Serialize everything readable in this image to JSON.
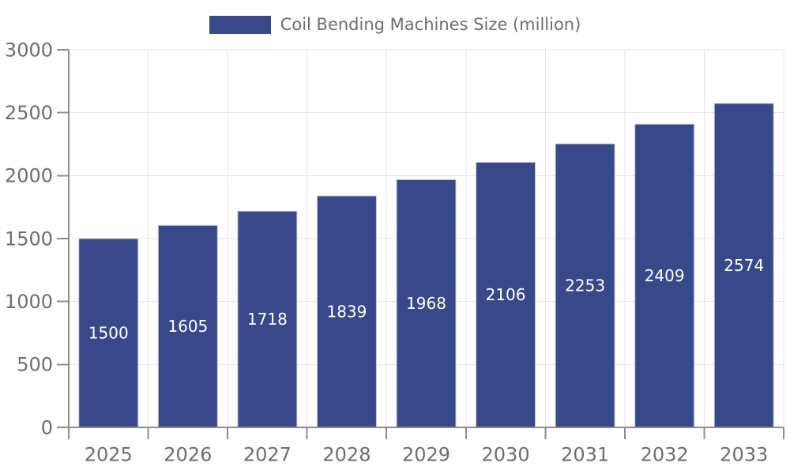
{
  "legend": {
    "label": "Coil Bending Machines Size (million)"
  },
  "chart_data": {
    "type": "bar",
    "title": "Coil Bending Machines Size (million)",
    "series_name": "Coil Bending Machines Size (million)",
    "categories": [
      "2025",
      "2026",
      "2027",
      "2028",
      "2029",
      "2030",
      "2031",
      "2032",
      "2033"
    ],
    "values": [
      1500,
      1605,
      1718,
      1839,
      1968,
      2106,
      2253,
      2409,
      2574
    ],
    "value_labels": [
      "1500",
      "1605",
      "1718",
      "1839",
      "1968",
      "2106",
      "2253",
      "2409",
      "2574"
    ],
    "xlabel": "",
    "ylabel": "",
    "ylim": [
      0,
      3000
    ],
    "ytick_step": 500,
    "yticks": [
      0,
      500,
      1000,
      1500,
      2000,
      2500,
      3000
    ],
    "grid": true,
    "legend_position": "top-center",
    "colors": {
      "bar": "#38498a",
      "bar_edge": "#c6cbd8",
      "value_label": "#ffffff",
      "grid": "#e4e4e4",
      "axis": "#8c8c8c",
      "tick_label": "#6e6e6e",
      "background": "#ffffff"
    }
  }
}
